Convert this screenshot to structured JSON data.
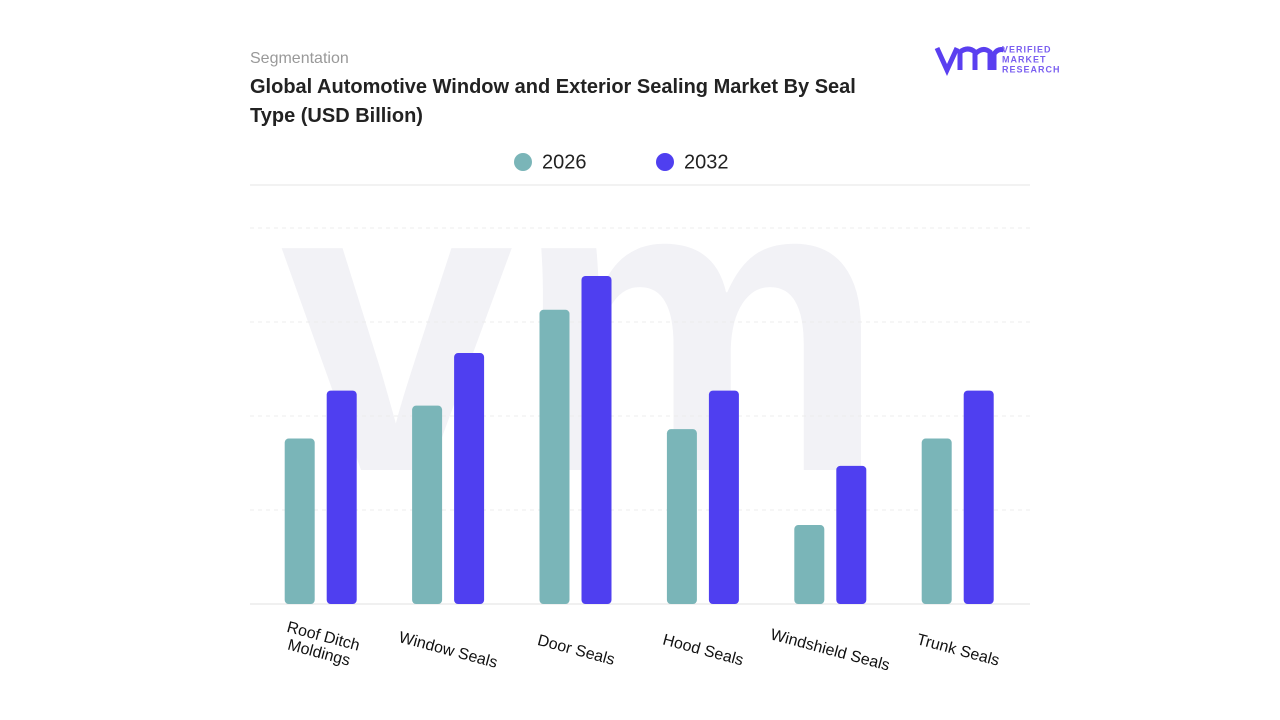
{
  "chart_data": {
    "type": "bar",
    "subtitle": "Segmentation",
    "title": "Global Automotive Window and Exterior Sealing Market By Seal Type (USD Billion)",
    "categories": [
      "Roof Ditch Moldings",
      "Window Seals",
      "Door Seals",
      "Hood Seals",
      "Windshield Seals",
      "Trunk Seals"
    ],
    "series": [
      {
        "name": "2026",
        "color": "#7ab5b8",
        "values": [
          1.76,
          2.11,
          3.13,
          1.86,
          0.84,
          1.76
        ]
      },
      {
        "name": "2032",
        "color": "#4f3ff0",
        "values": [
          2.27,
          2.67,
          3.49,
          2.27,
          1.47,
          2.27
        ]
      }
    ],
    "ylim": [
      0,
      4
    ],
    "yticks": [
      0,
      1,
      2,
      3,
      4
    ],
    "grid": true
  },
  "brand": {
    "line1": "VERIFIED",
    "line2": "MARKET",
    "line3": "RESEARCH"
  }
}
